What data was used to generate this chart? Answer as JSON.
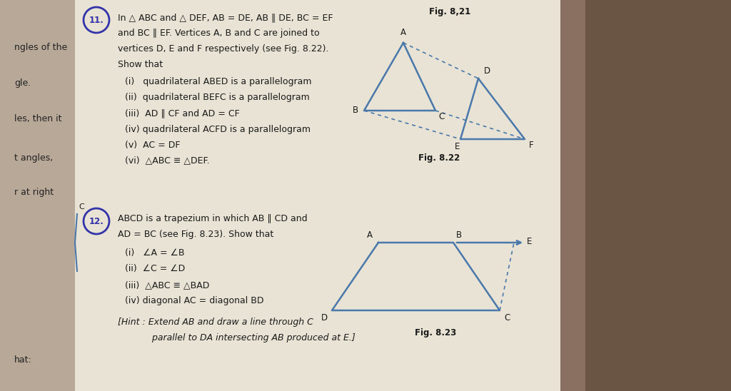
{
  "bg_left": "#b8a898",
  "bg_right": "#6a5040",
  "page_color": "#e8e3d5",
  "text_color": "#1a1a1a",
  "blue_color": "#4a78aa",
  "circle_color": "#3333aa",
  "fig821_label": "Fig. 8,21",
  "fig822_label": "Fig. 8.22",
  "fig823_label": "Fig. 8.23",
  "q11_line1": "In △ ABC and △ DEF, AB = DE, AB ∥ DE, BC = EF",
  "q11_line2": "and BC ∥ EF. Vertices A, B and C are joined to",
  "q11_line3": "vertices D, E and F respectively (see Fig. 8.22).",
  "q11_line4": "Show that",
  "q11_items": [
    "(i)   quadrilateral ABED is a parallelogram",
    "(ii)  quadrilateral BEFC is a parallelogram",
    "(iii)  AD ∥ CF and AD = CF",
    "(iv) quadrilateral ACFD is a parallelogram",
    "(v)  AC = DF",
    "(vi)  △ABC ≡ △DEF."
  ],
  "q12_line1": "ABCD is a trapezium in which AB ∥ CD and",
  "q12_line2": "AD = BC (see Fig. 8.23). Show that",
  "q12_items": [
    "(i)   ∠A = ∠B",
    "(ii)  ∠C = ∠D",
    "(iii)  △ABC ≡ △BAD",
    "(iv) diagonal AC = diagonal BD"
  ],
  "q12_hint1": "[Hint : Extend AB and draw a line through C",
  "q12_hint2": "            parallel to DA intersecting AB produced at E.]",
  "left_margin_text1": "ngles of the",
  "left_margin_text2": "gle.",
  "left_margin_text3": "les, then it",
  "left_margin_text4": "t angles,",
  "left_margin_text5": "r at right",
  "left_margin_text6": "hat:"
}
